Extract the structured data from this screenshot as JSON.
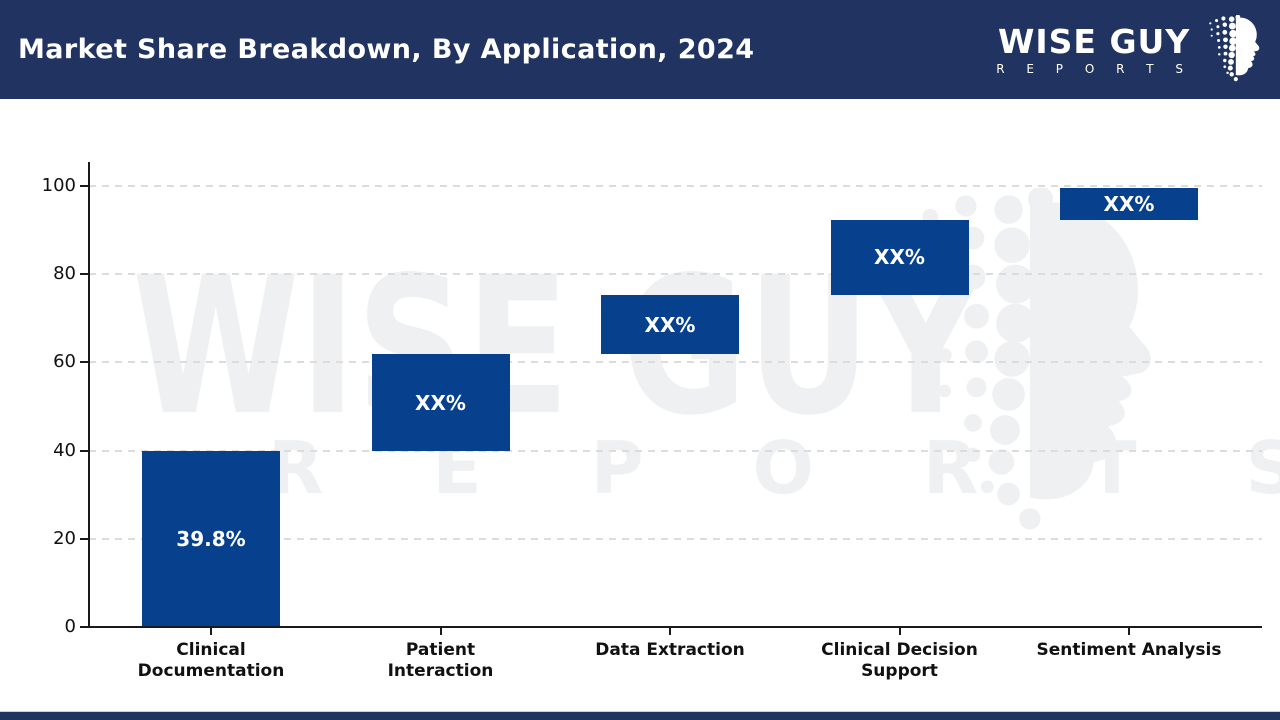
{
  "header": {
    "title": "Market Share Breakdown, By Application, 2024",
    "logo": {
      "line1": "WISE GUY",
      "line2": "R E P O R T S"
    }
  },
  "watermark": {
    "line1": "WISE GUY",
    "line2": "R E P O R T S"
  },
  "colors": {
    "header_bg": "#213360",
    "bar": "#07418e",
    "bar_label": "#ffffff",
    "grid": "#dcdcdc",
    "axis": "#1a1a1a",
    "watermark": "#eff0f2"
  },
  "chart_data": {
    "type": "bar",
    "subtype": "waterfall",
    "title": "Market Share Breakdown, By Application, 2024",
    "xlabel": "",
    "ylabel": "",
    "ylim": [
      0,
      105
    ],
    "y_ticks": [
      0,
      20,
      40,
      60,
      80,
      100
    ],
    "grid": "dashed horizontal",
    "legend": "none",
    "categories": [
      "Clinical Documentation",
      "Patient Interaction",
      "Data Extraction",
      "Clinical Decision Support",
      "Sentiment Analysis"
    ],
    "bars": [
      {
        "category": "Clinical Documentation",
        "label_lines": [
          "Clinical",
          "Documentation"
        ],
        "start": 0,
        "end": 39.8,
        "value_label": "39.8%"
      },
      {
        "category": "Patient Interaction",
        "label_lines": [
          "Patient",
          "Interaction"
        ],
        "start": 39.8,
        "end": 61.8,
        "value_label": "XX%"
      },
      {
        "category": "Data Extraction",
        "label_lines": [
          "Data Extraction"
        ],
        "start": 61.8,
        "end": 75.2,
        "value_label": "XX%"
      },
      {
        "category": "Clinical Decision Support",
        "label_lines": [
          "Clinical Decision",
          "Support"
        ],
        "start": 75.2,
        "end": 92.4,
        "value_label": "XX%"
      },
      {
        "category": "Sentiment Analysis",
        "label_lines": [
          "Sentiment Analysis"
        ],
        "start": 92.4,
        "end": 99.6,
        "value_label": "XX%"
      }
    ]
  }
}
